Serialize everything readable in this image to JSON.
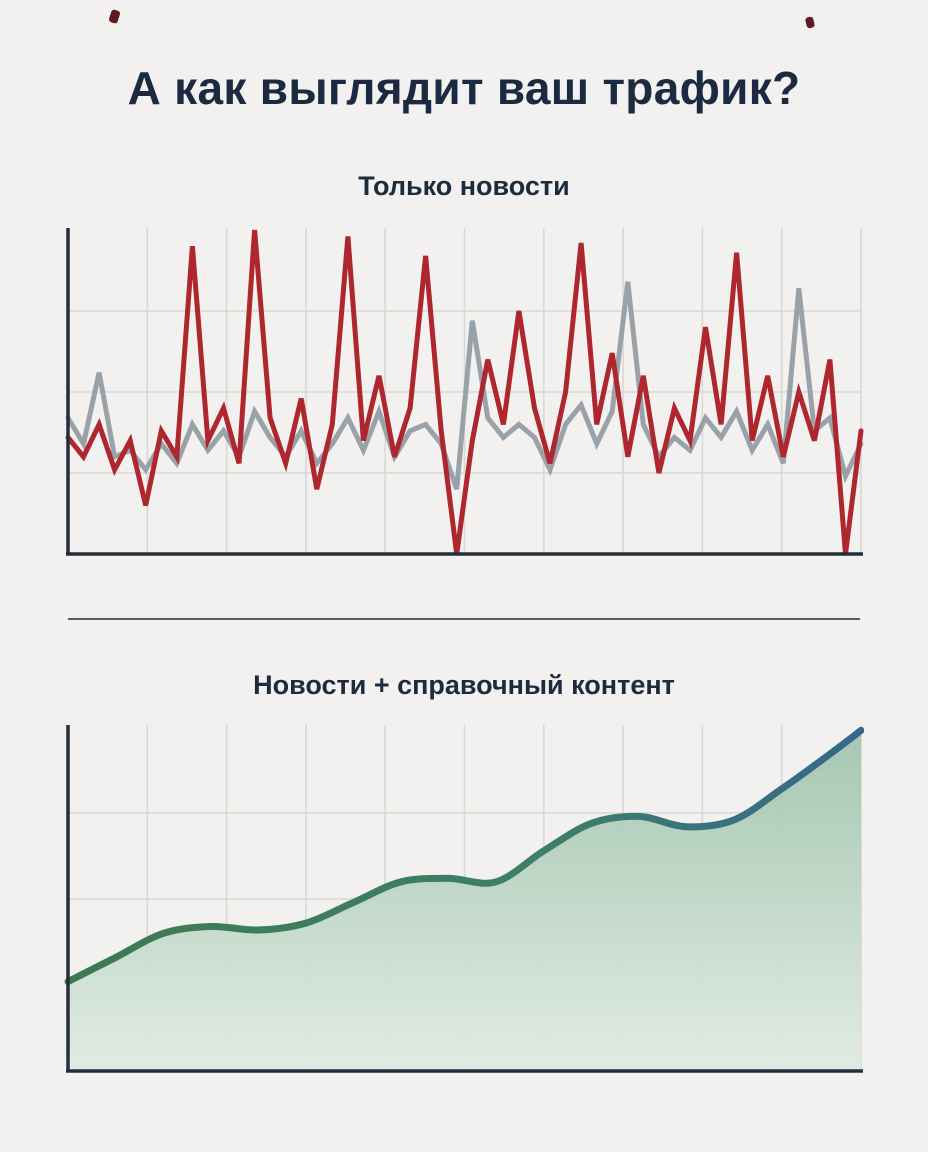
{
  "title": "А как выглядит ваш трафик?",
  "colors": {
    "background": "#f2f1ef",
    "title": "#1b2a40",
    "chart_title": "#1d2c3c",
    "axis": "#232e3a",
    "grid": "#d9d8d3",
    "divider": "#595d60",
    "news_red": "#ae272e",
    "secondary_gray": "#99a1a9",
    "growth_green": "#3d7a50",
    "growth_blue": "#35688c"
  },
  "chart_data": [
    {
      "type": "line",
      "title": "Только новости",
      "ylim": [
        0,
        100
      ],
      "grid": {
        "cols": 10,
        "rows": 4
      },
      "axes_labels_visible": false,
      "legend": "none",
      "series": [
        {
          "name": "secondary-gray",
          "color": "#99a1a9",
          "values": [
            42,
            34,
            56,
            30,
            32,
            26,
            34,
            28,
            40,
            32,
            38,
            30,
            44,
            36,
            30,
            38,
            28,
            34,
            42,
            32,
            44,
            30,
            38,
            40,
            34,
            20,
            72,
            42,
            36,
            40,
            36,
            26,
            40,
            46,
            34,
            44,
            84,
            40,
            30,
            36,
            32,
            42,
            36,
            44,
            32,
            40,
            28,
            82,
            38,
            42,
            24,
            34
          ]
        },
        {
          "name": "news-red",
          "color": "#ae272e",
          "values": [
            36,
            30,
            40,
            26,
            35,
            15,
            38,
            30,
            95,
            35,
            45,
            28,
            100,
            42,
            28,
            48,
            20,
            40,
            98,
            35,
            55,
            30,
            45,
            92,
            38,
            0,
            35,
            60,
            40,
            75,
            45,
            28,
            50,
            96,
            40,
            62,
            30,
            55,
            25,
            45,
            35,
            70,
            40,
            93,
            35,
            55,
            30,
            50,
            35,
            60,
            0,
            38
          ]
        }
      ]
    },
    {
      "type": "area",
      "title": "Новости + справочный контент",
      "ylim": [
        0,
        100
      ],
      "grid": {
        "cols": 10,
        "rows": 4
      },
      "axes_labels_visible": false,
      "legend": "none",
      "series": [
        {
          "name": "evergreen-growth",
          "smooth": true,
          "color_start": "#3d7a50",
          "color_mid": "#3f7e6a",
          "color_end": "#35688c",
          "fill_top": "#9ec3ab",
          "fill_bottom": "#e0ebe3",
          "x": [
            0,
            0.06,
            0.12,
            0.18,
            0.24,
            0.3,
            0.36,
            0.42,
            0.48,
            0.54,
            0.6,
            0.66,
            0.72,
            0.78,
            0.84,
            0.9,
            0.96,
            1.0
          ],
          "values": [
            26,
            33,
            40,
            42,
            41,
            43,
            49,
            55,
            56,
            55,
            64,
            72,
            74,
            71,
            73,
            82,
            92,
            99
          ]
        }
      ]
    }
  ]
}
